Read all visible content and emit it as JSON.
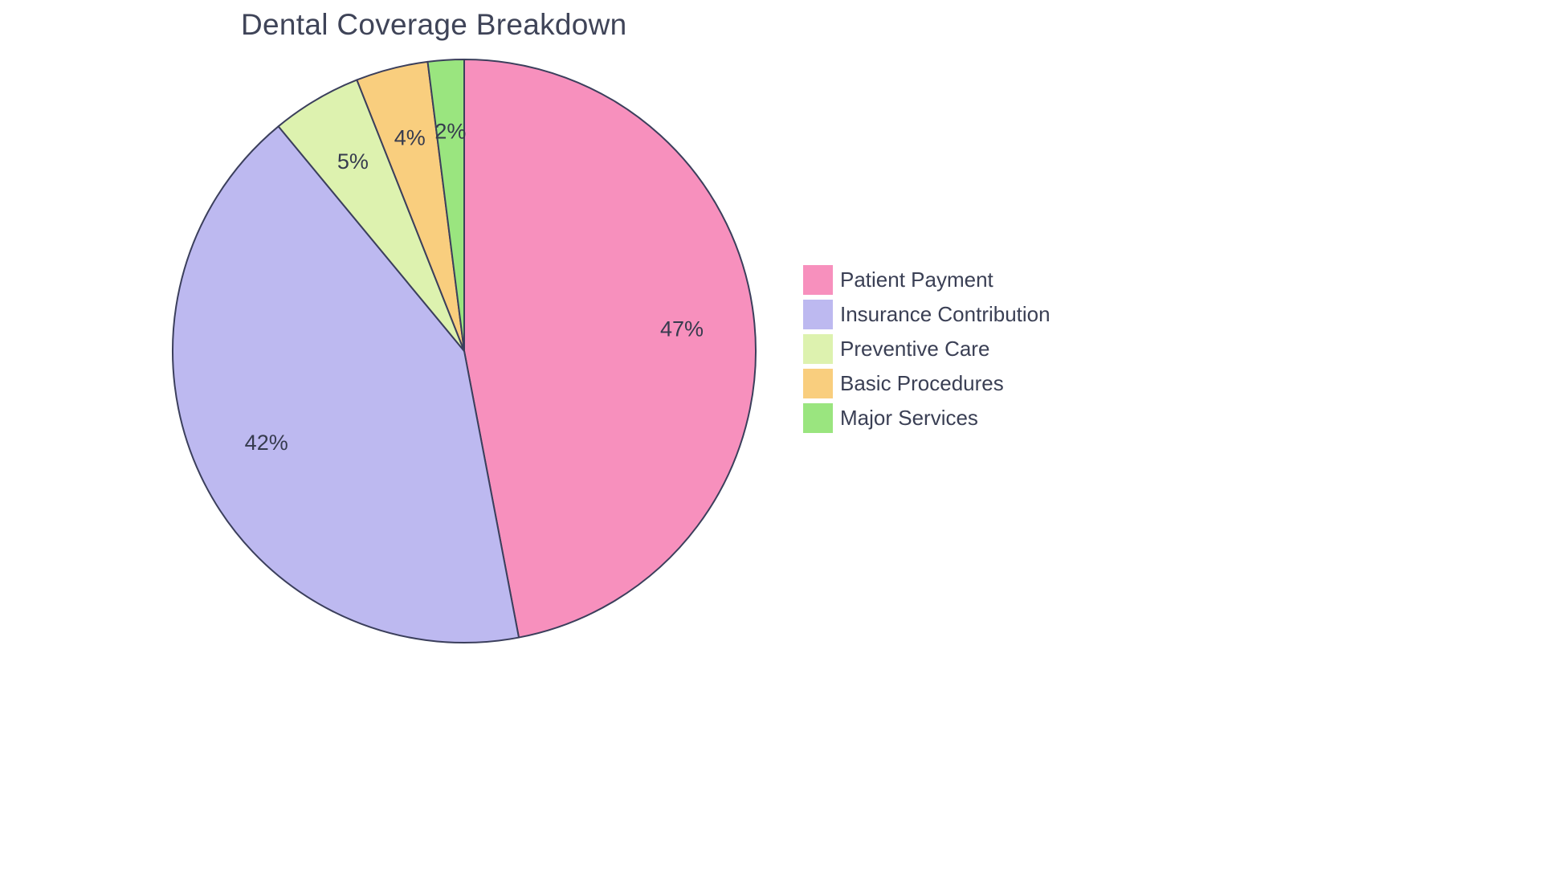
{
  "chart_data": {
    "type": "pie",
    "title": "Dental Coverage Breakdown",
    "labels": [
      "Patient Payment",
      "Insurance Contribution",
      "Preventive Care",
      "Basic Procedures",
      "Major Services"
    ],
    "values": [
      47,
      42,
      5,
      4,
      2
    ],
    "slice_labels": [
      "47%",
      "42%",
      "5%",
      "4%",
      "2%"
    ],
    "colors": [
      "#F790BD",
      "#BDB9F0",
      "#DDF2AF",
      "#F9CE7E",
      "#9AE57F"
    ],
    "stroke_color": "#3B3F5C",
    "start_angle_deg": 0,
    "direction": "clockwise",
    "legend_position": "right",
    "label_color": "#363B4E",
    "title_color": "#3F4458"
  }
}
